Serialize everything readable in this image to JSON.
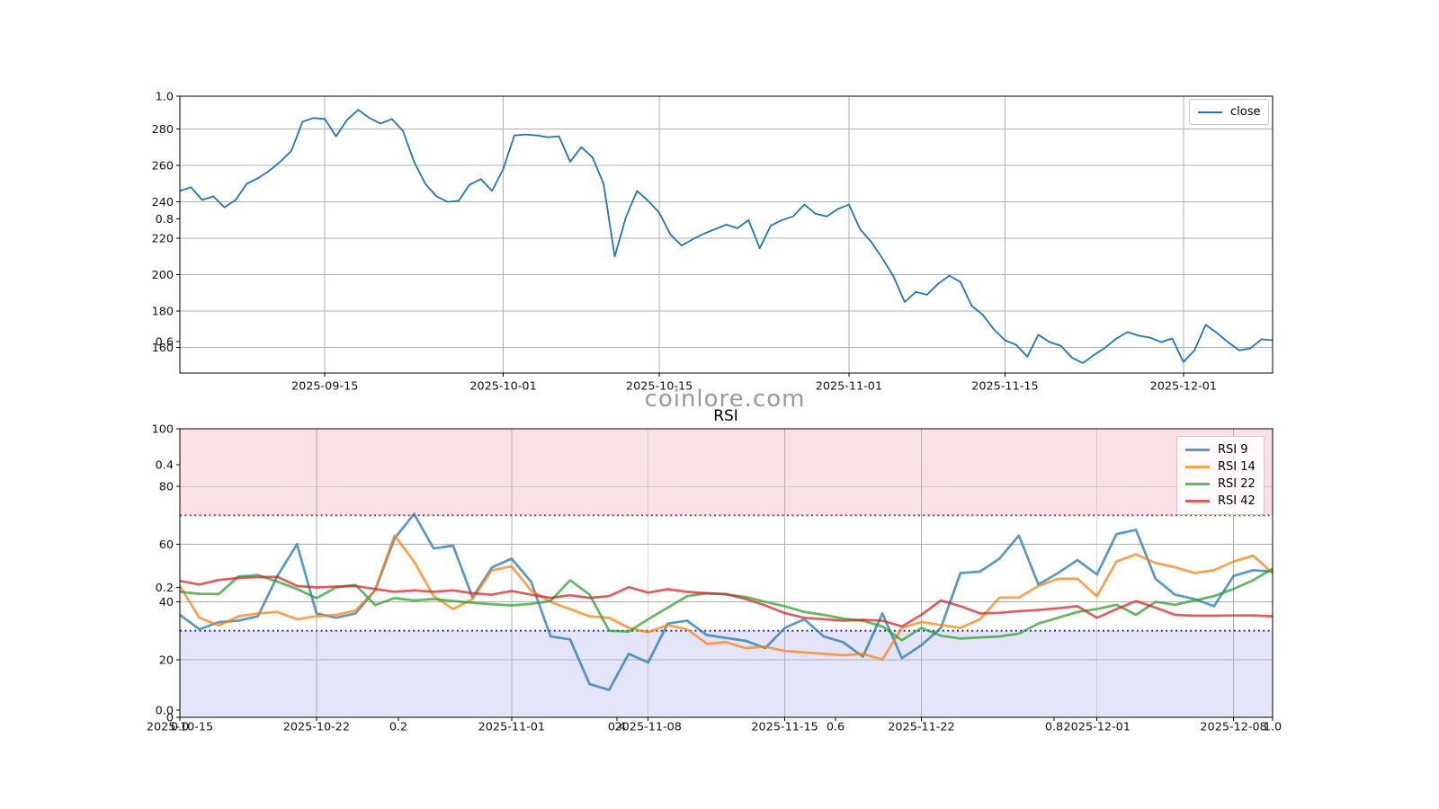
{
  "watermark": {
    "text": "coinlore.com"
  },
  "rsi_title": "RSI",
  "overlay_axis": {
    "x_tick_labels": [
      "0.0",
      "0.2",
      "0.4",
      "0.6",
      "0.8",
      "1.0"
    ],
    "y_tick_labels": [
      "1.0",
      "0.8",
      "0.6",
      "0.4",
      "0.2",
      "0.0"
    ]
  },
  "chart_data": [
    {
      "type": "line",
      "panel": "price",
      "start_date": "2025-09-02",
      "freq": "daily",
      "ylim": [
        146,
        298
      ],
      "y_ticks": [
        160,
        180,
        200,
        220,
        240,
        260,
        280
      ],
      "x_ticks": [
        {
          "label": "2025-09-15",
          "day": 13
        },
        {
          "label": "2025-10-01",
          "day": 29
        },
        {
          "label": "2025-10-15",
          "day": 43
        },
        {
          "label": "2025-11-01",
          "day": 60
        },
        {
          "label": "2025-11-15",
          "day": 74
        },
        {
          "label": "2025-12-01",
          "day": 90
        }
      ],
      "days_span": 98,
      "grid": true,
      "grid_color": "#b0b0b0",
      "legend_position": "upper right",
      "series": [
        {
          "name": "close",
          "color": "#1f77b4",
          "values": [
            246,
            248,
            241,
            243,
            237,
            241,
            250,
            253,
            257,
            262,
            268,
            284,
            286,
            285.5,
            276,
            285,
            290.5,
            286,
            283,
            285.5,
            279,
            262,
            250,
            243,
            240,
            240.5,
            249.5,
            252.5,
            246,
            258,
            276.5,
            277,
            276.5,
            275.5,
            276,
            262,
            270,
            264.5,
            250,
            210,
            231.5,
            246,
            240.5,
            234,
            222,
            216,
            219.5,
            222.5,
            225,
            227.5,
            225.5,
            230,
            214.5,
            227,
            230,
            232,
            238.5,
            233.5,
            232,
            236,
            238.5,
            225,
            218,
            209,
            199,
            185,
            190.5,
            189,
            195,
            199.5,
            196,
            183,
            178,
            170,
            164,
            161.5,
            155,
            167,
            163,
            161,
            154.5,
            151.5,
            156,
            160,
            165,
            168.5,
            166.5,
            165.5,
            163,
            165,
            152,
            158.5,
            172.5,
            168,
            163,
            158.5,
            159.5,
            164.5,
            164
          ]
        }
      ]
    },
    {
      "type": "line",
      "panel": "rsi",
      "title": "RSI",
      "start_date": "2025-10-15",
      "freq": "daily",
      "ylim": [
        0,
        100
      ],
      "y_ticks": [
        0,
        20,
        40,
        60,
        80,
        100
      ],
      "x_ticks": [
        {
          "label": "2025-10-15",
          "day": 0
        },
        {
          "label": "2025-10-22",
          "day": 7
        },
        {
          "label": "2025-11-01",
          "day": 17
        },
        {
          "label": "2025-11-08",
          "day": 24
        },
        {
          "label": "2025-11-15",
          "day": 31
        },
        {
          "label": "2025-11-22",
          "day": 38
        },
        {
          "label": "2025-12-01",
          "day": 47
        },
        {
          "label": "2025-12-08",
          "day": 54
        }
      ],
      "days_span": 56,
      "grid": true,
      "grid_color": "#b0b0b0",
      "overbought_level": 70,
      "oversold_level": 30,
      "overbought_line_color": "#dd2020",
      "oversold_line_color": "#2020bb",
      "overbought_band_color": "rgba(220,20,60,0.13)",
      "oversold_band_color": "rgba(45,45,205,0.12)",
      "legend_position": "upper right",
      "series": [
        {
          "name": "RSI 9",
          "color": "#1f77b4",
          "values": [
            35.5,
            30.5,
            33,
            33.5,
            35,
            49,
            60,
            36,
            34.5,
            36,
            44,
            62,
            70.5,
            58.5,
            59.5,
            41.5,
            52,
            55,
            47,
            28,
            27,
            11.5,
            9.5,
            22,
            19,
            32.5,
            33.5,
            28.5,
            27.5,
            26.5,
            24,
            31,
            34,
            28,
            26,
            21,
            36,
            20.5,
            25,
            31,
            50,
            50.5,
            55,
            63,
            46,
            50,
            54.5,
            49.5,
            63.5,
            65,
            48,
            42.5,
            41,
            38.5,
            49,
            51,
            50.5
          ]
        },
        {
          "name": "RSI 14",
          "color": "#ff7f0e",
          "values": [
            45.5,
            34.5,
            31.8,
            35,
            36,
            36.5,
            34,
            35,
            35.5,
            37,
            44,
            63,
            54,
            42,
            37.5,
            41,
            51,
            52.3,
            44,
            40,
            37.5,
            35,
            34.5,
            31,
            29.5,
            32,
            30.5,
            25.5,
            26,
            24,
            24.5,
            23,
            22.5,
            22,
            21.5,
            22,
            20,
            31,
            33,
            32,
            31,
            34,
            41.5,
            41.5,
            45.5,
            48,
            48,
            42,
            54,
            56.5,
            53.5,
            52,
            50,
            51,
            54,
            56,
            50
          ]
        },
        {
          "name": "RSI 22",
          "color": "#2ca02c",
          "values": [
            43.5,
            42.8,
            42.7,
            48.8,
            49.3,
            47,
            44.5,
            41.3,
            45,
            45.9,
            38.9,
            41.3,
            40.5,
            41,
            40.3,
            39.7,
            39.2,
            38.8,
            39.3,
            40.3,
            47.5,
            42.5,
            30,
            29.7,
            34,
            38,
            42,
            43,
            42.6,
            41.7,
            40,
            38.5,
            36.5,
            35.5,
            34.2,
            33.5,
            31.5,
            26.7,
            31,
            28.3,
            27.3,
            27.7,
            28,
            29,
            32.5,
            34.5,
            36.5,
            37.5,
            39,
            35.5,
            40,
            39,
            40.5,
            42,
            44.5,
            47.5,
            51.5
          ]
        },
        {
          "name": "RSI 42",
          "color": "#d62728",
          "values": [
            47.3,
            46,
            47.6,
            48.3,
            48.6,
            48.7,
            45.5,
            45,
            45.3,
            45.5,
            44.5,
            43.5,
            44,
            43.5,
            44,
            43,
            42.5,
            43.8,
            42.5,
            41.4,
            42.3,
            41.4,
            42,
            45.1,
            43.2,
            44.4,
            43.5,
            43,
            42.7,
            41,
            38.8,
            36.1,
            34.5,
            34,
            33.5,
            33.8,
            33.5,
            31.5,
            35.5,
            40.5,
            38.5,
            36,
            36.2,
            36.8,
            37.2,
            37.8,
            38.5,
            34.5,
            37.5,
            40.3,
            38,
            35.5,
            35.2,
            35.2,
            35.3,
            35.3,
            35
          ]
        }
      ]
    }
  ]
}
